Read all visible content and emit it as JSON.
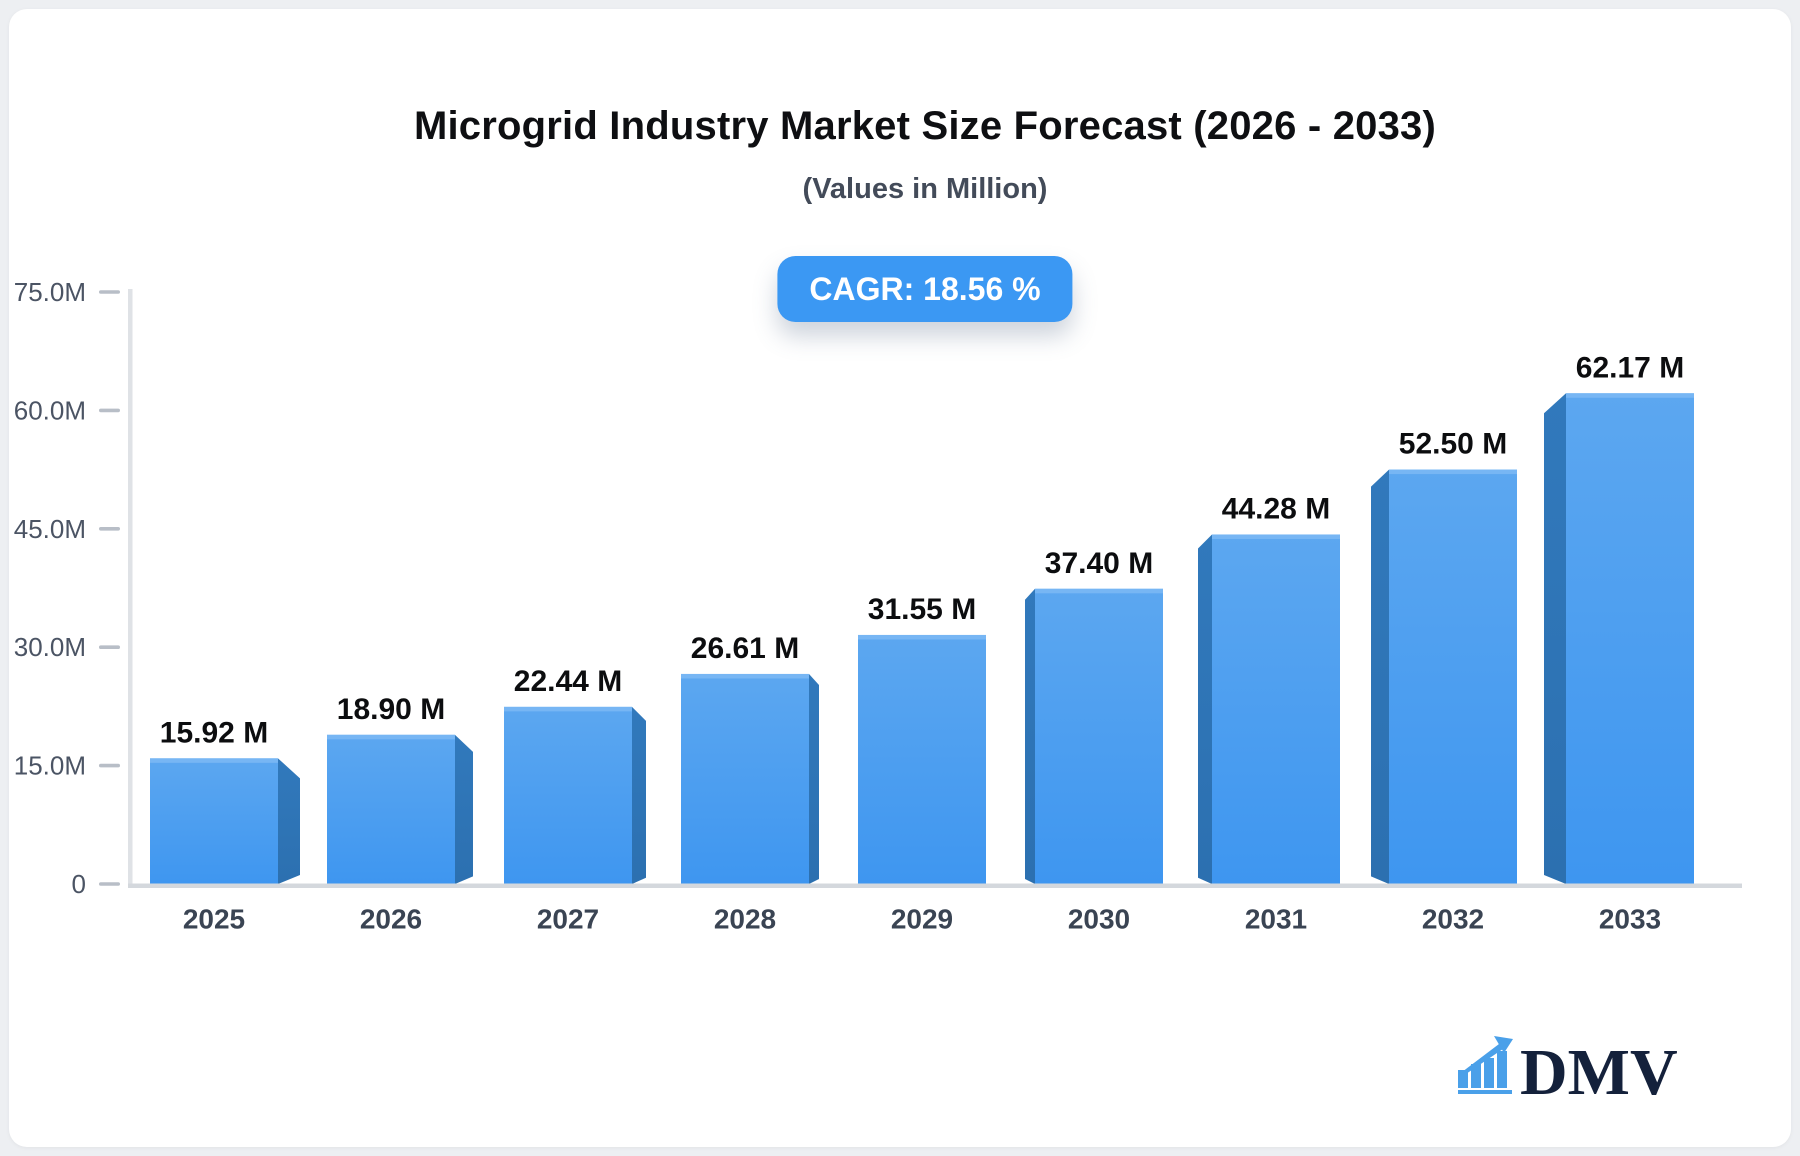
{
  "header": {
    "note": ""
  },
  "logo": {
    "text": "DMV",
    "icon": "growth-chart-arrow-icon",
    "icon_color": "#4aa0e9",
    "text_color": "#14213b"
  },
  "chart_data": {
    "type": "bar",
    "title": "Microgrid Industry Market Size Forecast (2026 - 2033)",
    "subtitle": "(Values in Million)",
    "annotation": "CAGR: 18.56 %",
    "categories": [
      "2025",
      "2026",
      "2027",
      "2028",
      "2029",
      "2030",
      "2031",
      "2032",
      "2033"
    ],
    "values": [
      15.92,
      18.9,
      22.44,
      26.61,
      31.55,
      37.4,
      44.28,
      52.5,
      62.17
    ],
    "value_labels": [
      "15.92 M",
      "18.90 M",
      "22.44 M",
      "26.61 M",
      "31.55 M",
      "37.40 M",
      "44.28 M",
      "52.50 M",
      "62.17 M"
    ],
    "unit": "M",
    "xlabel": "",
    "ylabel": "",
    "ylim": [
      0,
      75
    ],
    "yticks": [
      0,
      15,
      30,
      45,
      60,
      75
    ],
    "ytick_labels": [
      "0",
      "15.0M",
      "30.0M",
      "45.0M",
      "60.0M",
      "75.0M"
    ],
    "grid": false,
    "legend": false,
    "bar_style": "3d-perspective-center",
    "colors": {
      "face_top": "#5ca7f0",
      "face_bottom": "#3e96f0",
      "side_top": "#3179bc",
      "side_bottom": "#2c70b0",
      "cap": "#7ab8f4",
      "axis_line": "#dfe2e6",
      "base_line": "#d4d8dd",
      "tick_dash": "#b8bec7",
      "tick_text": "#4b5464",
      "category_text": "#3a4453",
      "value_text": "#0c0d0f",
      "badge_bg": "#3b98f3",
      "badge_text": "#ffffff"
    }
  }
}
